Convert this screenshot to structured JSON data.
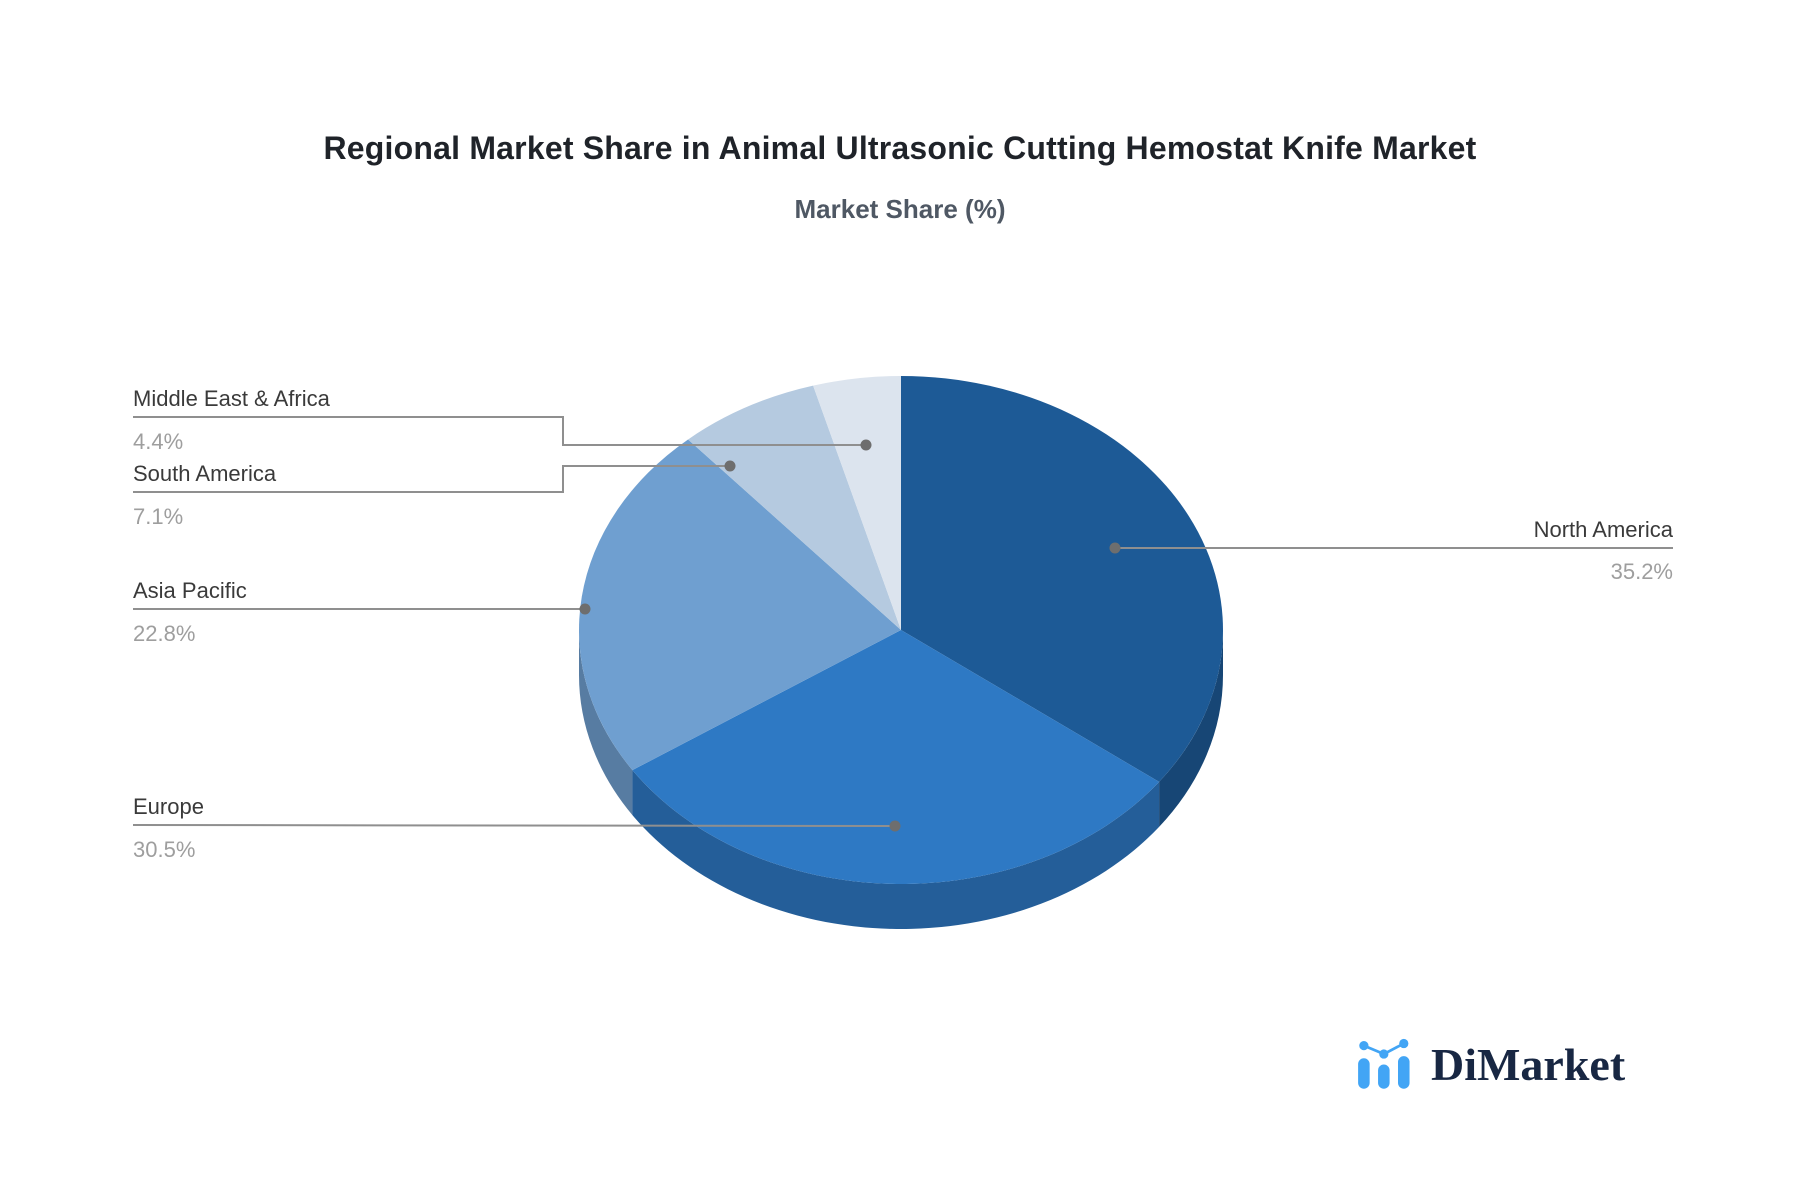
{
  "page": {
    "background": "#ffffff"
  },
  "header": {
    "title": "Regional Market Share in Animal Ultrasonic Cutting Hemostat Knife Market",
    "subtitle": "Market Share (%)"
  },
  "chart_data": {
    "type": "pie",
    "style": "3d",
    "title": "Regional Market Share in Animal Ultrasonic Cutting Hemostat Knife Market",
    "subtitle": "Market Share (%)",
    "unit": "%",
    "direction": "clockwise",
    "start_angle_deg": 90,
    "legend": "none",
    "categories": [
      "North America",
      "Europe",
      "Asia Pacific",
      "South America",
      "Middle East & Africa"
    ],
    "values": [
      35.2,
      30.5,
      22.8,
      7.1,
      4.4
    ],
    "value_labels": [
      "35.2%",
      "30.5%",
      "22.8%",
      "7.1%",
      "4.4%"
    ],
    "colors": [
      "#1d5a96",
      "#2e79c4",
      "#6f9fd0",
      "#b5cae0",
      "#dce4ee"
    ],
    "leader_line_color": "#8f8f8f",
    "dot_color": "#6e6e6e",
    "label_name_color": "#3a3a3a",
    "label_value_color": "#9e9e9e"
  },
  "brand": {
    "name": "DiMarket",
    "text_color": "#182743",
    "icon": "bar-chart-icon",
    "icon_color": "#42a5f5"
  }
}
